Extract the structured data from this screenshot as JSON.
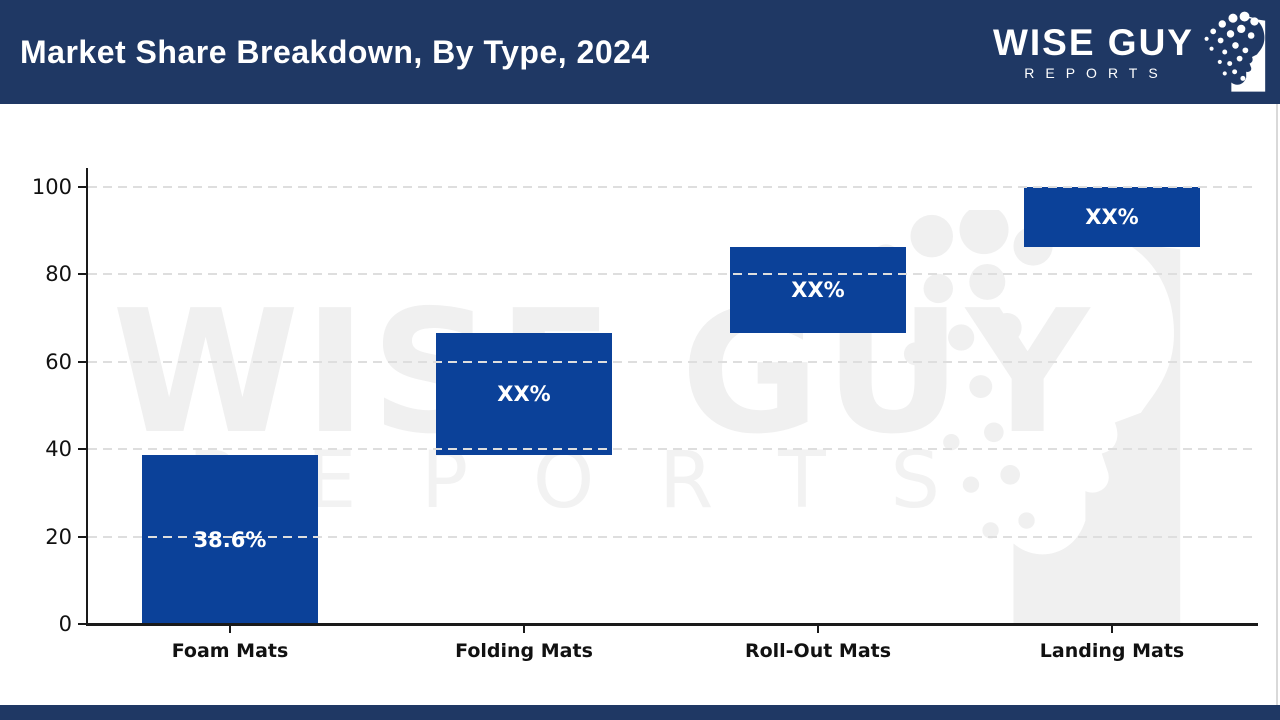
{
  "header": {
    "title": "Market Share Breakdown, By Type, 2024",
    "logo": {
      "line1": "WISE GUY",
      "line2": "REPORTS"
    }
  },
  "watermark": {
    "line1": "WISE GUY",
    "line2": "R E P O R T S"
  },
  "colors": {
    "header_bg": "#1f3864",
    "footer_bg": "#1f3864",
    "bar": "#0b4199",
    "bar_label": "#ffffff",
    "grid": "#dedede",
    "axis": "#1a1a1a",
    "tick_text": "#111111",
    "watermark": "#f0f0f0"
  },
  "chart_data": {
    "type": "bar",
    "subtype": "waterfall",
    "title": "Market Share Breakdown, By Type, 2024",
    "categories": [
      "Foam Mats",
      "Folding Mats",
      "Roll-Out Mats",
      "Landing Mats"
    ],
    "segments": [
      {
        "category": "Foam Mats",
        "start": 0,
        "end": 38.6,
        "label": "38.6%"
      },
      {
        "category": "Folding Mats",
        "start": 38.6,
        "end": 66.7,
        "label": "XX%"
      },
      {
        "category": "Roll-Out Mats",
        "start": 66.7,
        "end": 86.2,
        "label": "XX%"
      },
      {
        "category": "Landing Mats",
        "start": 86.2,
        "end": 100,
        "label": "XX%"
      }
    ],
    "yticks": [
      0,
      20,
      40,
      60,
      80,
      100
    ],
    "ylim": [
      0,
      105
    ],
    "xlabel": "",
    "ylabel": "",
    "grid": "horizontal-dashed, drawn over bars",
    "legend": "none"
  }
}
